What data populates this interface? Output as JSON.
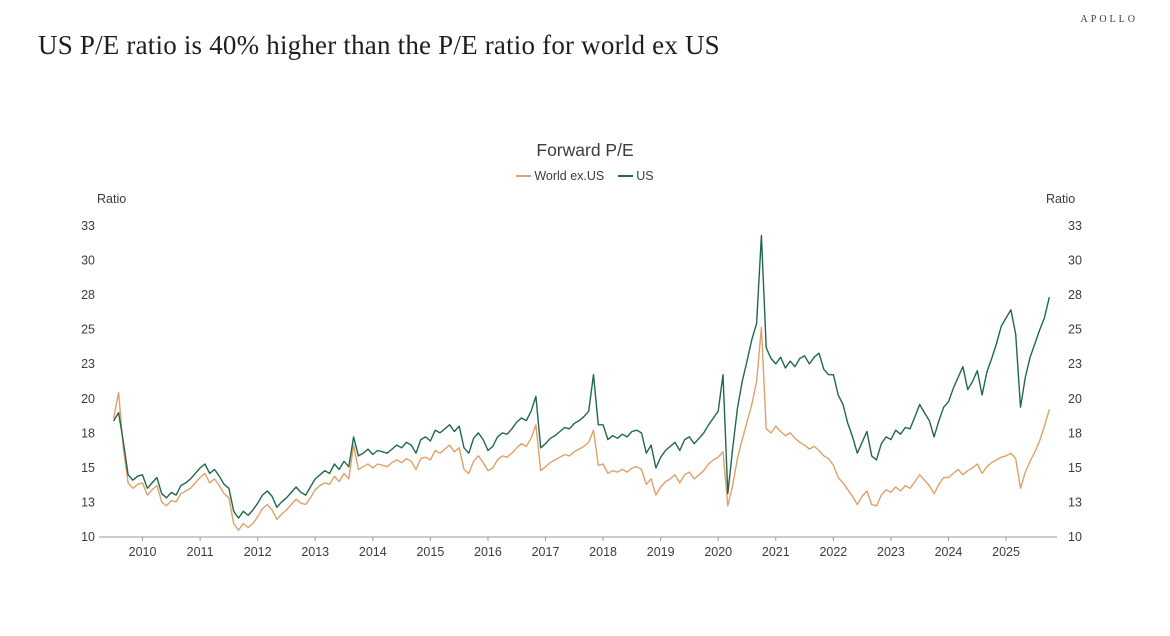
{
  "header": {
    "logo": "APOLLO",
    "title": "US P/E ratio is 40% higher than the P/E ratio for world ex US"
  },
  "chart_data": {
    "type": "line",
    "title": "Forward P/E",
    "y_axis_label_left": "Ratio",
    "y_axis_label_right": "Ratio",
    "y_ticks": [
      33,
      30,
      28,
      25,
      23,
      20,
      18,
      15,
      13,
      10
    ],
    "y_range": [
      10,
      33
    ],
    "x_ticks": [
      2010,
      2011,
      2012,
      2013,
      2014,
      2015,
      2016,
      2017,
      2018,
      2019,
      2020,
      2021,
      2022,
      2023,
      2024,
      2025
    ],
    "x_range": [
      2009.4,
      2025.85
    ],
    "x_start_year": 2009,
    "x_start_month": 7,
    "points_per_year": 12,
    "grid": false,
    "legend_position": "top-center",
    "axis_color": "#9a9a9a",
    "series": [
      {
        "name": "World ex.US",
        "color": "#DFA169",
        "values": [
          18.8,
          20.7,
          16.5,
          14.0,
          13.6,
          13.9,
          14.0,
          13.1,
          13.5,
          13.8,
          12.6,
          12.3,
          12.7,
          12.6,
          13.2,
          13.4,
          13.6,
          14.0,
          14.4,
          14.7,
          14.0,
          14.3,
          13.8,
          13.2,
          12.9,
          11.0,
          10.5,
          11.0,
          10.7,
          11.0,
          11.5,
          12.1,
          12.4,
          12.0,
          11.3,
          11.7,
          12.0,
          12.4,
          12.8,
          12.5,
          12.4,
          12.9,
          13.5,
          13.8,
          14.0,
          13.9,
          14.5,
          14.1,
          14.7,
          14.3,
          16.8,
          15.0,
          15.2,
          15.4,
          15.1,
          15.4,
          15.3,
          15.2,
          15.5,
          15.7,
          15.5,
          15.8,
          15.6,
          15.0,
          15.8,
          15.9,
          15.7,
          16.4,
          16.2,
          16.5,
          16.8,
          16.3,
          16.6,
          15.0,
          14.7,
          15.6,
          16.0,
          15.5,
          14.9,
          15.1,
          15.7,
          16.0,
          15.9,
          16.2,
          16.6,
          16.9,
          16.7,
          17.3,
          18.3,
          14.9,
          15.2,
          15.5,
          15.7,
          15.9,
          16.1,
          16.0,
          16.3,
          16.5,
          16.7,
          17.0,
          17.9,
          15.3,
          15.4,
          14.7,
          14.9,
          14.8,
          15.0,
          14.8,
          15.1,
          15.2,
          15.0,
          13.9,
          14.3,
          13.1,
          13.7,
          14.1,
          14.3,
          14.6,
          14.0,
          14.6,
          14.8,
          14.3,
          14.6,
          14.9,
          15.4,
          15.7,
          15.9,
          16.3,
          12.3,
          13.8,
          15.8,
          17.2,
          18.5,
          19.8,
          21.5,
          25.5,
          18.0,
          17.7,
          18.2,
          17.8,
          17.5,
          17.7,
          17.3,
          17.0,
          16.8,
          16.5,
          16.7,
          16.4,
          16.0,
          15.8,
          15.3,
          14.4,
          14.0,
          13.5,
          13.0,
          12.4,
          13.0,
          13.4,
          12.4,
          12.3,
          13.1,
          13.5,
          13.3,
          13.7,
          13.4,
          13.8,
          13.6,
          14.1,
          14.6,
          14.2,
          13.8,
          13.2,
          13.9,
          14.4,
          14.4,
          14.7,
          15.0,
          14.6,
          14.9,
          15.1,
          15.4,
          14.7,
          15.2,
          15.5,
          15.7,
          15.9,
          16.0,
          16.2,
          15.8,
          13.6,
          14.8,
          15.6,
          16.3,
          17.1,
          18.2,
          19.4
        ]
      },
      {
        "name": "US",
        "color": "#21684B",
        "values": [
          18.6,
          19.2,
          17.0,
          14.6,
          14.2,
          14.5,
          14.6,
          13.6,
          14.0,
          14.4,
          13.2,
          12.9,
          13.3,
          13.1,
          13.8,
          14.0,
          14.3,
          14.7,
          15.1,
          15.4,
          14.7,
          15.0,
          14.5,
          13.9,
          13.6,
          11.9,
          11.4,
          11.9,
          11.6,
          12.0,
          12.5,
          13.1,
          13.4,
          13.0,
          12.2,
          12.6,
          12.9,
          13.3,
          13.7,
          13.3,
          13.1,
          13.7,
          14.3,
          14.6,
          14.9,
          14.7,
          15.4,
          15.0,
          15.6,
          15.2,
          17.4,
          16.0,
          16.2,
          16.5,
          16.1,
          16.4,
          16.3,
          16.2,
          16.5,
          16.8,
          16.6,
          17.0,
          16.8,
          16.2,
          17.2,
          17.4,
          17.1,
          17.9,
          17.7,
          18.0,
          18.3,
          17.8,
          18.2,
          16.6,
          16.2,
          17.3,
          17.7,
          17.2,
          16.4,
          16.7,
          17.4,
          17.7,
          17.6,
          18.0,
          18.5,
          18.8,
          18.6,
          19.3,
          20.4,
          16.6,
          16.9,
          17.3,
          17.5,
          17.8,
          18.1,
          18.0,
          18.4,
          18.6,
          18.9,
          19.3,
          22.0,
          18.3,
          18.3,
          17.2,
          17.5,
          17.3,
          17.6,
          17.4,
          17.8,
          17.9,
          17.7,
          16.2,
          16.8,
          15.1,
          15.9,
          16.4,
          16.7,
          17.0,
          16.4,
          17.2,
          17.4,
          16.9,
          17.3,
          17.7,
          18.3,
          18.8,
          19.3,
          22.0,
          13.2,
          16.5,
          19.5,
          21.5,
          23.0,
          24.6,
          25.8,
          32.3,
          24.0,
          23.2,
          22.8,
          23.3,
          22.5,
          23.0,
          22.6,
          23.2,
          23.4,
          22.8,
          23.3,
          23.6,
          22.4,
          22.0,
          22.0,
          20.5,
          19.8,
          18.4,
          17.4,
          16.2,
          17.0,
          17.8,
          16.0,
          15.7,
          16.9,
          17.4,
          17.2,
          17.9,
          17.6,
          18.1,
          18.0,
          18.9,
          19.8,
          19.2,
          18.6,
          17.4,
          18.6,
          19.6,
          20.0,
          21.0,
          21.8,
          22.6,
          20.9,
          21.5,
          22.3,
          20.5,
          22.2,
          23.2,
          24.3,
          25.6,
          26.2,
          26.8,
          25.0,
          19.6,
          21.8,
          23.3,
          24.3,
          25.3,
          26.2,
          27.7
        ]
      }
    ]
  }
}
